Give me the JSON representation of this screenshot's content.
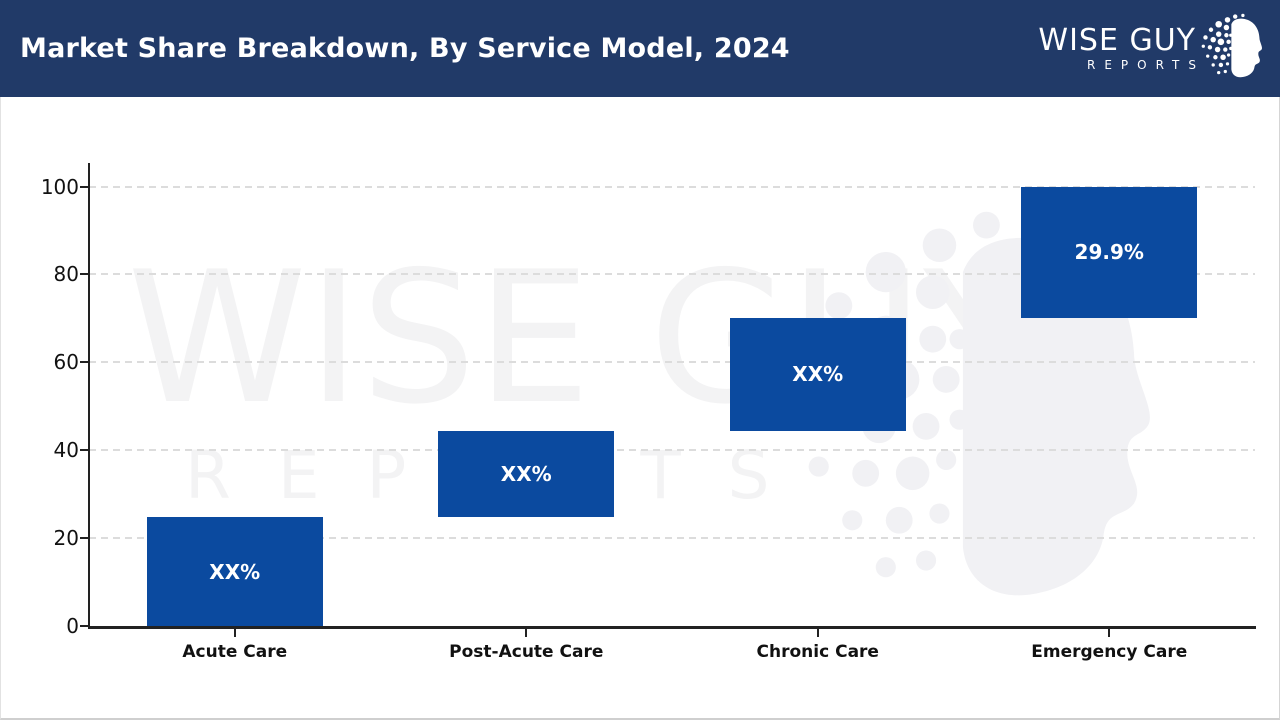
{
  "header": {
    "title": "Market Share Breakdown, By Service Model, 2024",
    "logo": {
      "line1": "WISE GUY",
      "line2": "REPORTS"
    }
  },
  "watermark": {
    "line1": "WISE GUY",
    "line2": "REPORTS"
  },
  "chart_data": {
    "type": "bar",
    "subtype": "floating-waterfall",
    "title": "Market Share Breakdown, By Service Model, 2024",
    "categories": [
      "Acute Care",
      "Post-Acute Care",
      "Chronic Care",
      "Emergency Care"
    ],
    "segments": [
      {
        "category": "Acute Care",
        "start": 0,
        "end": 24.7,
        "label": "XX%"
      },
      {
        "category": "Post-Acute Care",
        "start": 24.7,
        "end": 44.4,
        "label": "XX%"
      },
      {
        "category": "Chronic Care",
        "start": 44.4,
        "end": 70.1,
        "label": "XX%"
      },
      {
        "category": "Emergency Care",
        "start": 70.1,
        "end": 100,
        "label": "29.9%"
      }
    ],
    "xlabel": "",
    "ylabel": "",
    "ylim": [
      0,
      100
    ],
    "yticks": [
      0,
      20,
      40,
      60,
      80,
      100
    ],
    "grid": "horizontal-dashed",
    "legend": "none",
    "bar_color": "#0B4A9F",
    "bar_label_color": "#FFFFFF"
  },
  "colors": {
    "header_bg": "#213A68",
    "axis": "#222222",
    "gridline": "#DCDCDC",
    "watermark": "#F2F2F4"
  }
}
